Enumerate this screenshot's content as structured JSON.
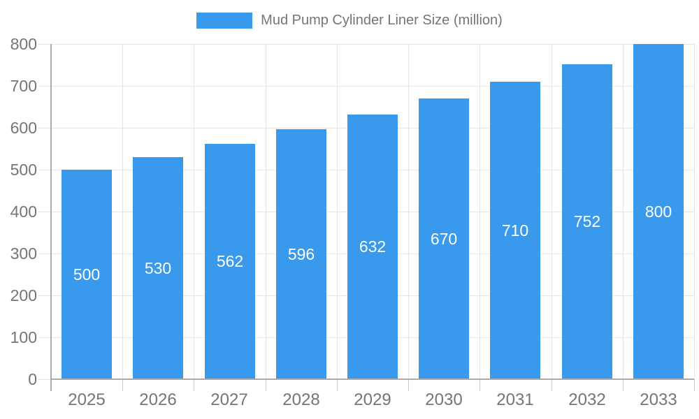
{
  "legend": {
    "label": "Mud Pump Cylinder Liner Size (million)"
  },
  "chart_data": {
    "type": "bar",
    "title": "Mud Pump Cylinder Liner Size (million)",
    "series": [
      {
        "name": "Mud Pump Cylinder Liner Size (million)",
        "values": [
          500,
          530,
          562,
          596,
          632,
          670,
          710,
          752,
          800
        ]
      }
    ],
    "categories": [
      "2025",
      "2026",
      "2027",
      "2028",
      "2029",
      "2030",
      "2031",
      "2032",
      "2033"
    ],
    "values": [
      500,
      530,
      562,
      596,
      632,
      670,
      710,
      752,
      800
    ],
    "value_labels": [
      "500",
      "530",
      "562",
      "596",
      "632",
      "670",
      "710",
      "752",
      "800"
    ],
    "value_label_position": "inside-center",
    "xlabel": "",
    "ylabel": "",
    "ylim": [
      0,
      800
    ],
    "ytick_step": 100,
    "yticks": [
      0,
      100,
      200,
      300,
      400,
      500,
      600,
      700,
      800
    ],
    "grid": true,
    "legend_position": "top",
    "colors": {
      "bar": "#3999ec",
      "gridline": "#e6e6e6",
      "axis_line": "#ababab",
      "axis_text": "#757575",
      "value_label": "#ffffff",
      "background": "#ffffff"
    }
  }
}
